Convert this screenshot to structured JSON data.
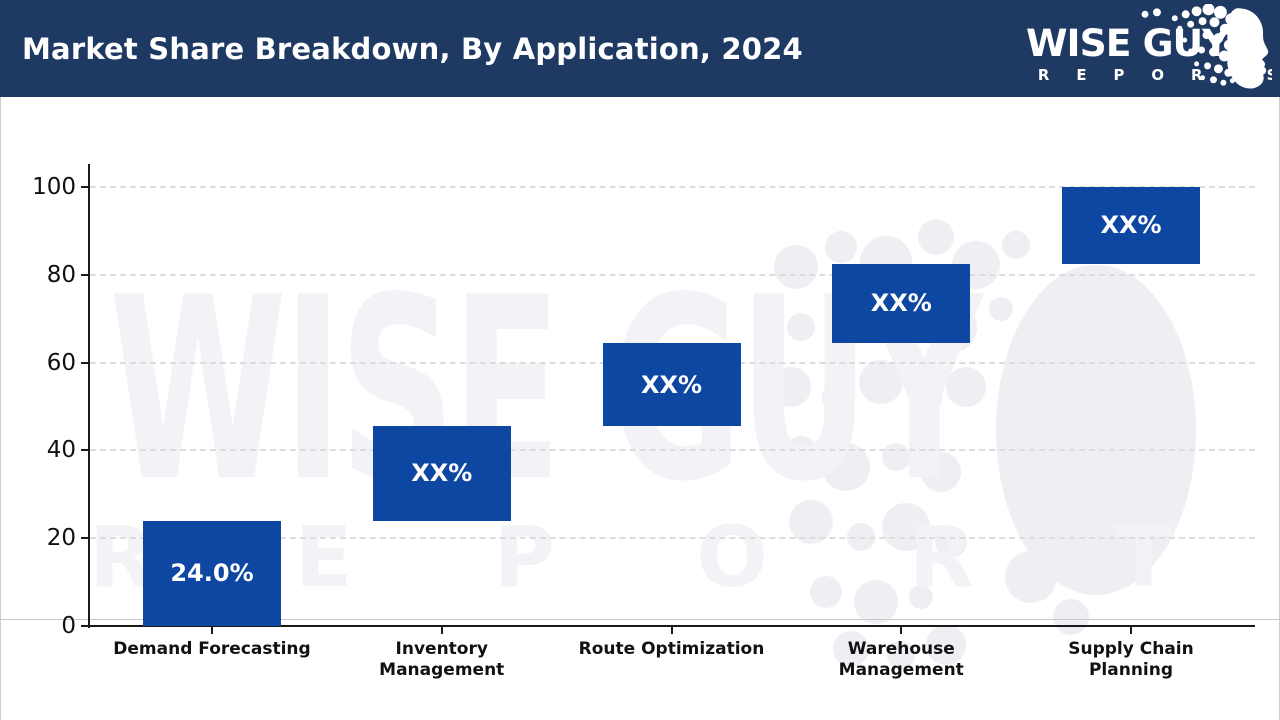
{
  "header": {
    "title": "Market Share Breakdown, By Application, 2024",
    "bg_color": "#1e3a63",
    "logo": {
      "line1": "WISE GUY",
      "line2": "R E P O R T S"
    }
  },
  "watermark": {
    "line1": "WISE GUY",
    "line2": "R E P O R T S"
  },
  "chart_data": {
    "type": "bar",
    "subtype": "waterfall",
    "title": "Market Share Breakdown, By Application, 2024",
    "xlabel": "",
    "ylabel": "",
    "ylim": [
      0,
      105
    ],
    "yticks": [
      0,
      20,
      40,
      60,
      80,
      100
    ],
    "grid": "horizontal-dashed",
    "legend": "none",
    "bar_color": "#0d47a1",
    "bar_label_color": "#ffffff",
    "categories": [
      "Demand Forecasting",
      "Inventory Management",
      "Route Optimization",
      "Warehouse Management",
      "Supply Chain Planning"
    ],
    "segments": [
      {
        "category": "Demand Forecasting",
        "tick_lines": [
          "Demand Forecasting"
        ],
        "start": 0,
        "end": 24,
        "value": 24.0,
        "label": "24.0%"
      },
      {
        "category": "Inventory Management",
        "tick_lines": [
          "Inventory",
          "Management"
        ],
        "start": 24,
        "end": 45.5,
        "value": 21.5,
        "label": "XX%"
      },
      {
        "category": "Route Optimization",
        "tick_lines": [
          "Route Optimization"
        ],
        "start": 45.5,
        "end": 64.5,
        "value": 19.0,
        "label": "XX%"
      },
      {
        "category": "Warehouse Management",
        "tick_lines": [
          "Warehouse",
          "Management"
        ],
        "start": 64.5,
        "end": 82.5,
        "value": 18.0,
        "label": "XX%"
      },
      {
        "category": "Supply Chain Planning",
        "tick_lines": [
          "Supply Chain",
          "Planning"
        ],
        "start": 82.5,
        "end": 100,
        "value": 17.5,
        "label": "XX%"
      }
    ]
  }
}
